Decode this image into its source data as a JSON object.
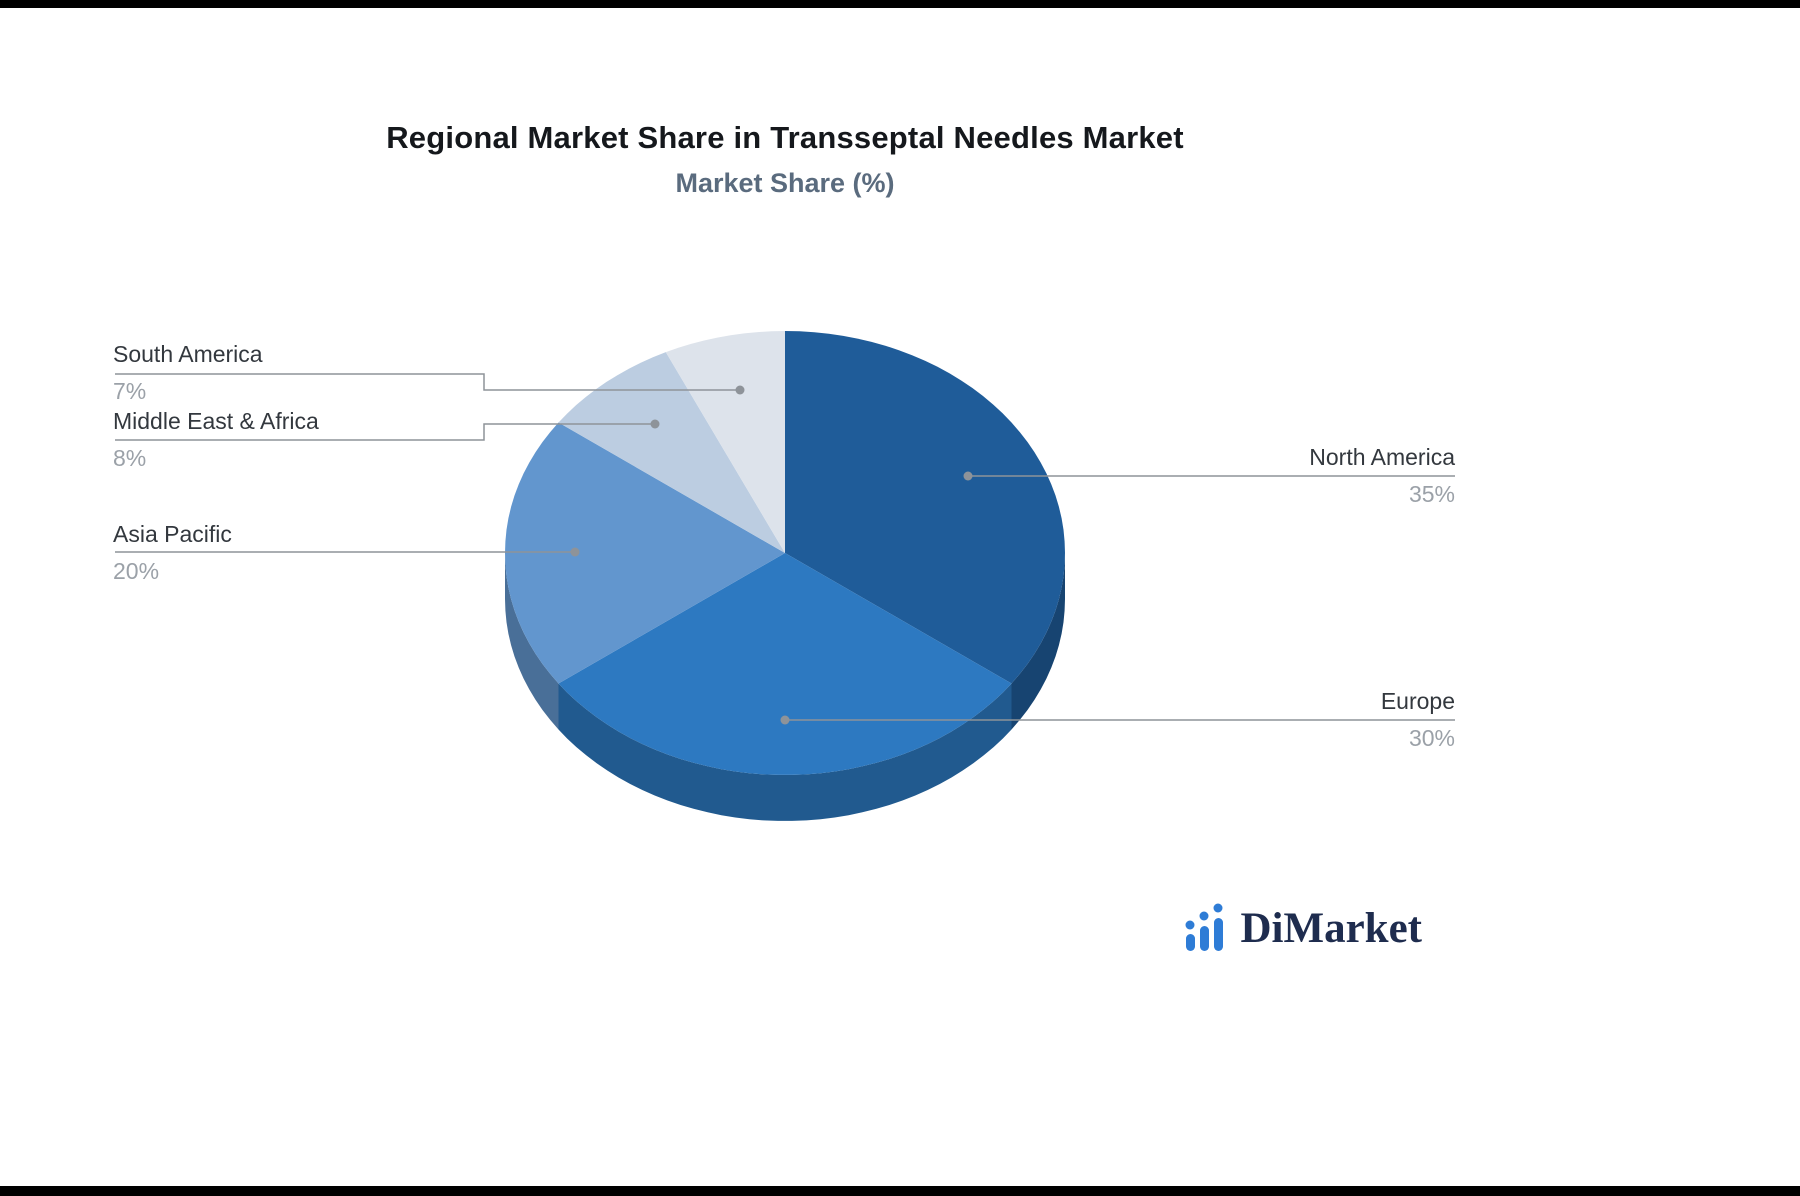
{
  "page": {
    "title": "Regional Market Share in Transseptal Needles Market",
    "subtitle": "Market Share (%)"
  },
  "chart_data": {
    "type": "pie",
    "title": "Regional Market Share in Transseptal Needles Market",
    "subtitle": "Market Share (%)",
    "unit": "%",
    "style": "3d-pie",
    "direction": "clockwise",
    "start_angle_deg": 0,
    "categories": [
      "North America",
      "Europe",
      "Asia Pacific",
      "Middle East & Africa",
      "South America"
    ],
    "values": [
      35,
      30,
      20,
      8,
      7
    ],
    "value_labels": [
      "35%",
      "30%",
      "20%",
      "8%",
      "7%"
    ],
    "colors": [
      "#1f5c99",
      "#2d79c1",
      "#6296ce",
      "#bccde1",
      "#dde3eb"
    ],
    "legend_position": "callout-labels"
  },
  "logo": {
    "text": "DiMarket",
    "icon": "bar-chart-icon",
    "text_color": "#1e2c4e",
    "accent_color": "#2e7cd6"
  }
}
